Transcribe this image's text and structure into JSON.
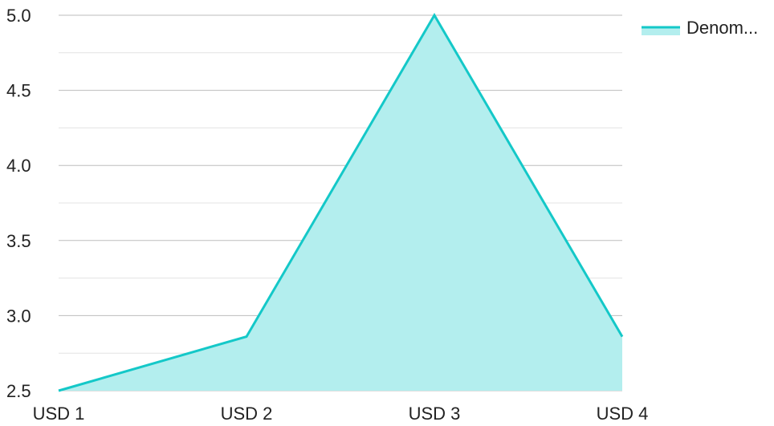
{
  "chart_data": {
    "type": "area",
    "categories": [
      "USD 1",
      "USD 2",
      "USD 3",
      "USD 4"
    ],
    "series": [
      {
        "name": "Denom...",
        "values": [
          2.5,
          2.86,
          5.0,
          2.86
        ]
      }
    ],
    "yticks": [
      "2.5",
      "3.0",
      "3.5",
      "4.0",
      "4.5",
      "5.0"
    ],
    "ylim": [
      2.5,
      5.0
    ],
    "grid": true,
    "legend_position": "top-right",
    "colors": {
      "line": "#14c8c8",
      "fill": "#b3eeee",
      "major_grid": "#bdbdbd",
      "minor_grid": "#e3e3e3"
    }
  }
}
